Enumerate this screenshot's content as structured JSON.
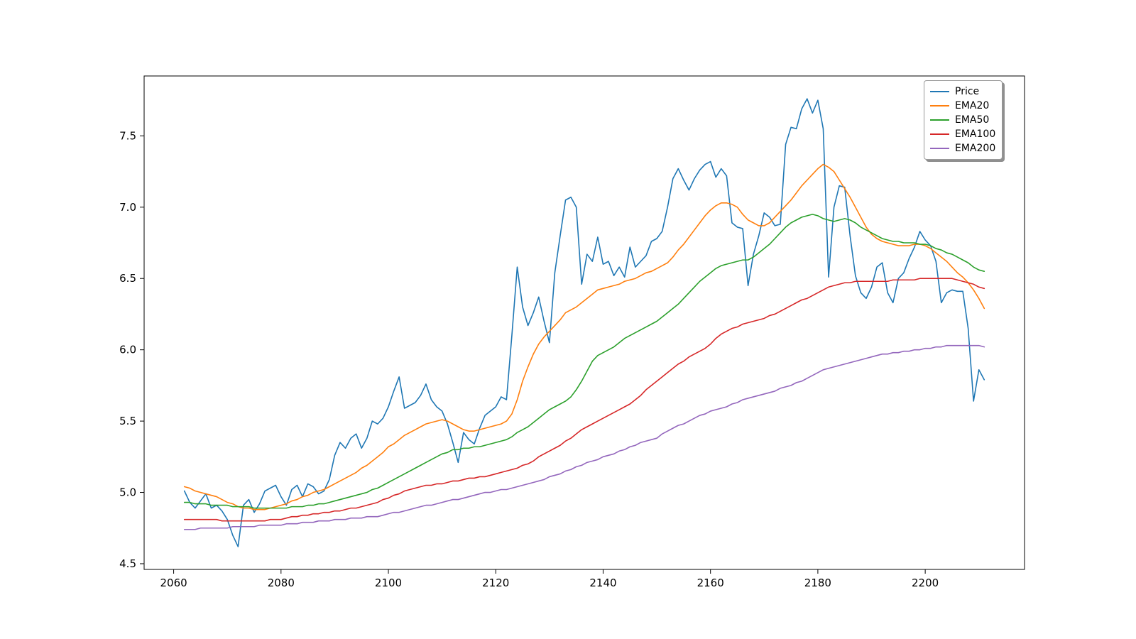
{
  "figure": {
    "background": "#ffffff",
    "spine_color": "#000000",
    "tick_color": "#000000"
  },
  "legend": {
    "position": "upper-right",
    "entries": [
      {
        "label": "Price",
        "color": "#1f77b4"
      },
      {
        "label": "EMA20",
        "color": "#ff7f0e"
      },
      {
        "label": "EMA50",
        "color": "#2ca02c"
      },
      {
        "label": "EMA100",
        "color": "#d62728"
      },
      {
        "label": "EMA200",
        "color": "#9467bd"
      }
    ]
  },
  "chart_data": {
    "type": "line",
    "title": "",
    "xlabel": "",
    "ylabel": "",
    "grid": false,
    "legend_position": "upper right",
    "xlim": [
      2054.5,
      2218.5
    ],
    "ylim": [
      4.46,
      7.92
    ],
    "x_ticks": {
      "values": [
        2060,
        2080,
        2100,
        2120,
        2140,
        2160,
        2180,
        2200
      ],
      "labels": [
        "2060",
        "2080",
        "2100",
        "2120",
        "2140",
        "2160",
        "2180",
        "2200"
      ]
    },
    "y_ticks": {
      "values": [
        4.5,
        5.0,
        5.5,
        6.0,
        6.5,
        7.0,
        7.5
      ],
      "labels": [
        "4.5",
        "5.0",
        "5.5",
        "6.0",
        "6.5",
        "7.0",
        "7.5"
      ]
    },
    "x_start": 2062,
    "x_step": 1,
    "series": [
      {
        "name": "Price",
        "color": "#1f77b4",
        "values": [
          5.01,
          4.93,
          4.89,
          4.94,
          4.99,
          4.89,
          4.91,
          4.87,
          4.81,
          4.7,
          4.62,
          4.91,
          4.95,
          4.86,
          4.92,
          5.01,
          5.03,
          5.05,
          4.97,
          4.91,
          5.02,
          5.05,
          4.97,
          5.06,
          5.04,
          4.99,
          5.01,
          5.09,
          5.26,
          5.35,
          5.31,
          5.38,
          5.41,
          5.31,
          5.38,
          5.5,
          5.48,
          5.52,
          5.6,
          5.71,
          5.81,
          5.59,
          5.61,
          5.63,
          5.68,
          5.76,
          5.65,
          5.6,
          5.57,
          5.48,
          5.35,
          5.21,
          5.42,
          5.37,
          5.34,
          5.45,
          5.54,
          5.57,
          5.6,
          5.67,
          5.65,
          6.1,
          6.58,
          6.3,
          6.17,
          6.26,
          6.37,
          6.2,
          6.05,
          6.54,
          6.8,
          7.05,
          7.07,
          7.0,
          6.46,
          6.67,
          6.62,
          6.79,
          6.6,
          6.62,
          6.52,
          6.58,
          6.51,
          6.72,
          6.58,
          6.62,
          6.66,
          6.76,
          6.78,
          6.83,
          7.0,
          7.2,
          7.27,
          7.19,
          7.12,
          7.2,
          7.26,
          7.3,
          7.32,
          7.21,
          7.27,
          7.22,
          6.89,
          6.86,
          6.85,
          6.45,
          6.67,
          6.8,
          6.96,
          6.93,
          6.87,
          6.88,
          7.44,
          7.56,
          7.55,
          7.69,
          7.76,
          7.66,
          7.75,
          7.55,
          6.51,
          7.0,
          7.15,
          7.14,
          6.8,
          6.52,
          6.4,
          6.36,
          6.44,
          6.58,
          6.61,
          6.4,
          6.33,
          6.5,
          6.54,
          6.64,
          6.72,
          6.83,
          6.77,
          6.73,
          6.62,
          6.33,
          6.4,
          6.42,
          6.41,
          6.41,
          6.15,
          5.64,
          5.86,
          5.79
        ]
      },
      {
        "name": "EMA20",
        "color": "#ff7f0e",
        "values": [
          5.04,
          5.03,
          5.01,
          5.0,
          4.99,
          4.98,
          4.97,
          4.95,
          4.93,
          4.92,
          4.9,
          4.89,
          4.89,
          4.88,
          4.88,
          4.88,
          4.89,
          4.9,
          4.91,
          4.92,
          4.94,
          4.95,
          4.97,
          4.98,
          5.0,
          5.01,
          5.02,
          5.04,
          5.06,
          5.08,
          5.1,
          5.12,
          5.14,
          5.17,
          5.19,
          5.22,
          5.25,
          5.28,
          5.32,
          5.34,
          5.37,
          5.4,
          5.42,
          5.44,
          5.46,
          5.48,
          5.49,
          5.5,
          5.51,
          5.5,
          5.48,
          5.46,
          5.44,
          5.43,
          5.43,
          5.44,
          5.45,
          5.46,
          5.47,
          5.48,
          5.5,
          5.55,
          5.65,
          5.78,
          5.88,
          5.97,
          6.04,
          6.09,
          6.13,
          6.17,
          6.21,
          6.26,
          6.28,
          6.3,
          6.33,
          6.36,
          6.39,
          6.42,
          6.43,
          6.44,
          6.45,
          6.46,
          6.48,
          6.49,
          6.5,
          6.52,
          6.54,
          6.55,
          6.57,
          6.59,
          6.61,
          6.65,
          6.7,
          6.74,
          6.79,
          6.84,
          6.89,
          6.94,
          6.98,
          7.01,
          7.03,
          7.03,
          7.02,
          7.0,
          6.95,
          6.91,
          6.89,
          6.87,
          6.87,
          6.89,
          6.93,
          6.97,
          7.01,
          7.05,
          7.1,
          7.15,
          7.19,
          7.23,
          7.27,
          7.3,
          7.28,
          7.25,
          7.19,
          7.13,
          7.07,
          7.0,
          6.93,
          6.86,
          6.81,
          6.78,
          6.76,
          6.75,
          6.74,
          6.73,
          6.73,
          6.73,
          6.74,
          6.74,
          6.73,
          6.71,
          6.68,
          6.65,
          6.62,
          6.58,
          6.54,
          6.51,
          6.47,
          6.42,
          6.36,
          6.29
        ]
      },
      {
        "name": "EMA50",
        "color": "#2ca02c",
        "values": [
          4.93,
          4.93,
          4.92,
          4.92,
          4.92,
          4.91,
          4.91,
          4.91,
          4.91,
          4.9,
          4.9,
          4.9,
          4.9,
          4.89,
          4.89,
          4.89,
          4.89,
          4.89,
          4.89,
          4.89,
          4.9,
          4.9,
          4.9,
          4.91,
          4.91,
          4.92,
          4.92,
          4.93,
          4.94,
          4.95,
          4.96,
          4.97,
          4.98,
          4.99,
          5.0,
          5.02,
          5.03,
          5.05,
          5.07,
          5.09,
          5.11,
          5.13,
          5.15,
          5.17,
          5.19,
          5.21,
          5.23,
          5.25,
          5.27,
          5.28,
          5.3,
          5.3,
          5.31,
          5.31,
          5.32,
          5.32,
          5.33,
          5.34,
          5.35,
          5.36,
          5.37,
          5.39,
          5.42,
          5.44,
          5.46,
          5.49,
          5.52,
          5.55,
          5.58,
          5.6,
          5.62,
          5.64,
          5.67,
          5.72,
          5.78,
          5.85,
          5.92,
          5.96,
          5.98,
          6.0,
          6.02,
          6.05,
          6.08,
          6.1,
          6.12,
          6.14,
          6.16,
          6.18,
          6.2,
          6.23,
          6.26,
          6.29,
          6.32,
          6.36,
          6.4,
          6.44,
          6.48,
          6.51,
          6.54,
          6.57,
          6.59,
          6.6,
          6.61,
          6.62,
          6.63,
          6.63,
          6.65,
          6.68,
          6.71,
          6.74,
          6.78,
          6.82,
          6.86,
          6.89,
          6.91,
          6.93,
          6.94,
          6.95,
          6.94,
          6.92,
          6.91,
          6.9,
          6.91,
          6.92,
          6.91,
          6.89,
          6.86,
          6.84,
          6.82,
          6.8,
          6.78,
          6.77,
          6.76,
          6.76,
          6.75,
          6.75,
          6.75,
          6.74,
          6.74,
          6.73,
          6.71,
          6.7,
          6.68,
          6.67,
          6.65,
          6.63,
          6.61,
          6.58,
          6.56,
          6.55
        ]
      },
      {
        "name": "EMA100",
        "color": "#d62728",
        "values": [
          4.81,
          4.81,
          4.81,
          4.81,
          4.81,
          4.81,
          4.81,
          4.8,
          4.8,
          4.8,
          4.8,
          4.8,
          4.8,
          4.8,
          4.8,
          4.8,
          4.81,
          4.81,
          4.81,
          4.82,
          4.83,
          4.83,
          4.84,
          4.84,
          4.85,
          4.85,
          4.86,
          4.86,
          4.87,
          4.87,
          4.88,
          4.89,
          4.89,
          4.9,
          4.91,
          4.92,
          4.93,
          4.95,
          4.96,
          4.98,
          4.99,
          5.01,
          5.02,
          5.03,
          5.04,
          5.05,
          5.05,
          5.06,
          5.06,
          5.07,
          5.08,
          5.08,
          5.09,
          5.1,
          5.1,
          5.11,
          5.11,
          5.12,
          5.13,
          5.14,
          5.15,
          5.16,
          5.17,
          5.19,
          5.2,
          5.22,
          5.25,
          5.27,
          5.29,
          5.31,
          5.33,
          5.36,
          5.38,
          5.41,
          5.44,
          5.46,
          5.48,
          5.5,
          5.52,
          5.54,
          5.56,
          5.58,
          5.6,
          5.62,
          5.65,
          5.68,
          5.72,
          5.75,
          5.78,
          5.81,
          5.84,
          5.87,
          5.9,
          5.92,
          5.95,
          5.97,
          5.99,
          6.01,
          6.04,
          6.08,
          6.11,
          6.13,
          6.15,
          6.16,
          6.18,
          6.19,
          6.2,
          6.21,
          6.22,
          6.24,
          6.25,
          6.27,
          6.29,
          6.31,
          6.33,
          6.35,
          6.36,
          6.38,
          6.4,
          6.42,
          6.44,
          6.45,
          6.46,
          6.47,
          6.47,
          6.48,
          6.48,
          6.48,
          6.48,
          6.48,
          6.48,
          6.48,
          6.49,
          6.49,
          6.49,
          6.49,
          6.49,
          6.5,
          6.5,
          6.5,
          6.5,
          6.5,
          6.5,
          6.5,
          6.49,
          6.48,
          6.47,
          6.46,
          6.44,
          6.43
        ]
      },
      {
        "name": "EMA200",
        "color": "#9467bd",
        "values": [
          4.74,
          4.74,
          4.74,
          4.75,
          4.75,
          4.75,
          4.75,
          4.75,
          4.75,
          4.76,
          4.76,
          4.76,
          4.76,
          4.76,
          4.77,
          4.77,
          4.77,
          4.77,
          4.77,
          4.78,
          4.78,
          4.78,
          4.79,
          4.79,
          4.79,
          4.8,
          4.8,
          4.8,
          4.81,
          4.81,
          4.81,
          4.82,
          4.82,
          4.82,
          4.83,
          4.83,
          4.83,
          4.84,
          4.85,
          4.86,
          4.86,
          4.87,
          4.88,
          4.89,
          4.9,
          4.91,
          4.91,
          4.92,
          4.93,
          4.94,
          4.95,
          4.95,
          4.96,
          4.97,
          4.98,
          4.99,
          5.0,
          5.0,
          5.01,
          5.02,
          5.02,
          5.03,
          5.04,
          5.05,
          5.06,
          5.07,
          5.08,
          5.09,
          5.11,
          5.12,
          5.13,
          5.15,
          5.16,
          5.18,
          5.19,
          5.21,
          5.22,
          5.23,
          5.25,
          5.26,
          5.27,
          5.29,
          5.3,
          5.32,
          5.33,
          5.35,
          5.36,
          5.37,
          5.38,
          5.41,
          5.43,
          5.45,
          5.47,
          5.48,
          5.5,
          5.52,
          5.54,
          5.55,
          5.57,
          5.58,
          5.59,
          5.6,
          5.62,
          5.63,
          5.65,
          5.66,
          5.67,
          5.68,
          5.69,
          5.7,
          5.71,
          5.73,
          5.74,
          5.75,
          5.77,
          5.78,
          5.8,
          5.82,
          5.84,
          5.86,
          5.87,
          5.88,
          5.89,
          5.9,
          5.91,
          5.92,
          5.93,
          5.94,
          5.95,
          5.96,
          5.97,
          5.97,
          5.98,
          5.98,
          5.99,
          5.99,
          6.0,
          6.0,
          6.01,
          6.01,
          6.02,
          6.02,
          6.03,
          6.03,
          6.03,
          6.03,
          6.03,
          6.03,
          6.03,
          6.02
        ]
      }
    ]
  }
}
